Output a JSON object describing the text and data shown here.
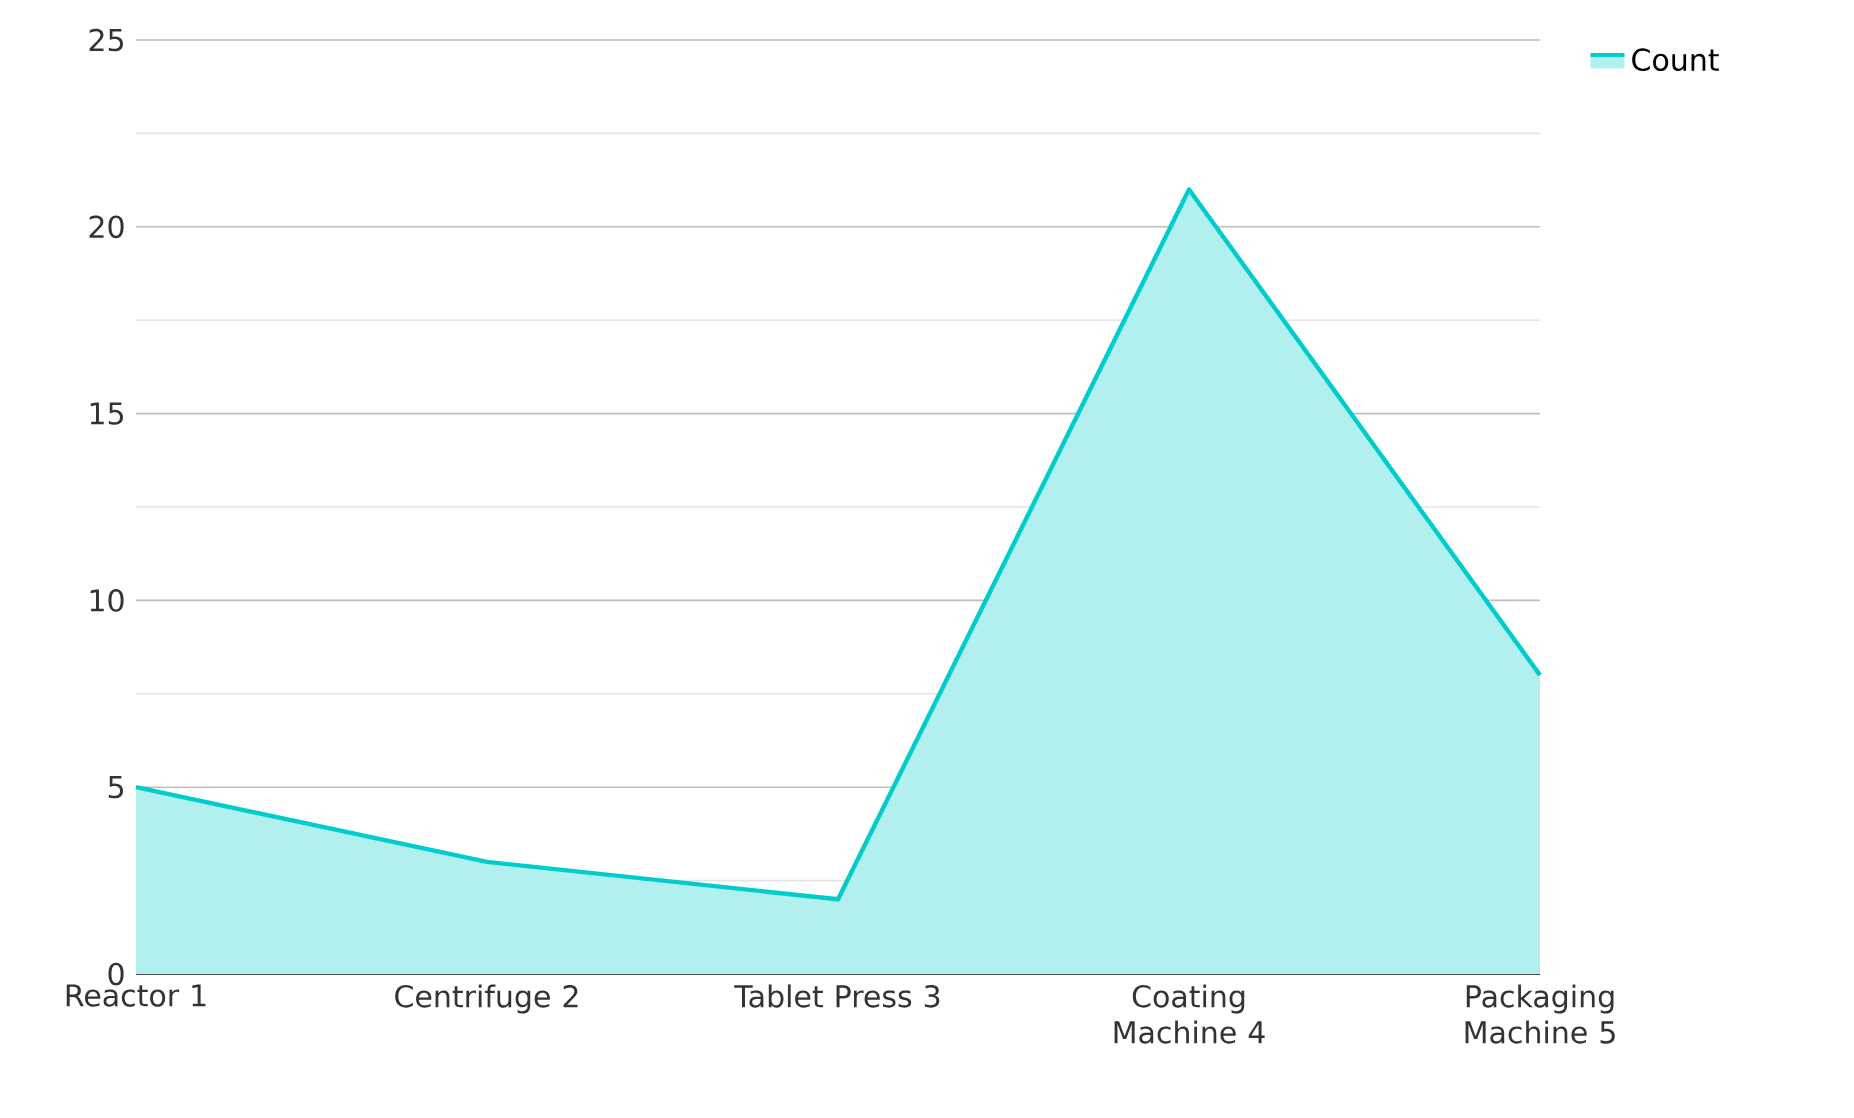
{
  "chart_data": {
    "type": "area",
    "categories": [
      "Reactor 1",
      "Centrifuge 2",
      "Tablet Press 3",
      "Coating Machine 4",
      "Packaging Machine 5"
    ],
    "series": [
      {
        "name": "Count",
        "color": "#00cccc",
        "values": [
          5,
          3,
          2,
          21,
          8
        ]
      }
    ],
    "ylim": [
      0,
      25
    ],
    "yticks": [
      0,
      5,
      10,
      15,
      20,
      25
    ],
    "grid": "y",
    "legend": "top right"
  }
}
